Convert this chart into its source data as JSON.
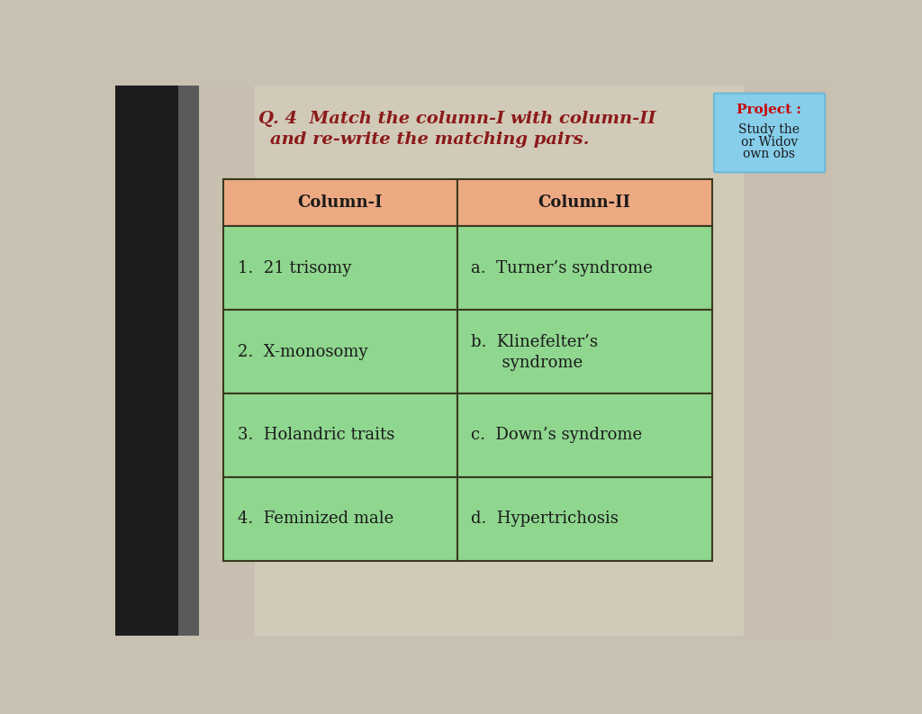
{
  "title_line1": "Q. 4  Match the column-I with column-II",
  "title_line2": "and re-write the matching pairs.",
  "title_color": "#8B1A1A",
  "title_fontsize": 14,
  "header_col1": "Column-I",
  "header_col2": "Column-II",
  "header_bg_color": "#EDAA82",
  "header_text_color": "#1A1A1A",
  "row_bg_color": "#8FD68F",
  "row_text_color": "#1A1A1A",
  "col1_items": [
    "1.  21 trisomy",
    "2.  X-monosomy",
    "3.  Holandric traits",
    "4.  Feminized male"
  ],
  "col2_items_line1": [
    "a.  Turner’s syndrome",
    "b.  Klinefelter’s",
    "c.  Down’s syndrome",
    "d.  Hypertrichosis"
  ],
  "col2_items_line2": [
    "",
    "      syndrome",
    "",
    ""
  ],
  "paper_color": "#C8C0B0",
  "paper_right_color": "#D0C8B8",
  "spine_color": "#1A1A1A",
  "border_color": "#3A3A20",
  "cell_fontsize": 13,
  "header_fontsize": 13,
  "project_box_color": "#87CEEB",
  "project_text": "Project :",
  "project_subtext_line1": "Study the",
  "project_subtext_line2": "or Widov",
  "project_subtext_line3": "own obs"
}
